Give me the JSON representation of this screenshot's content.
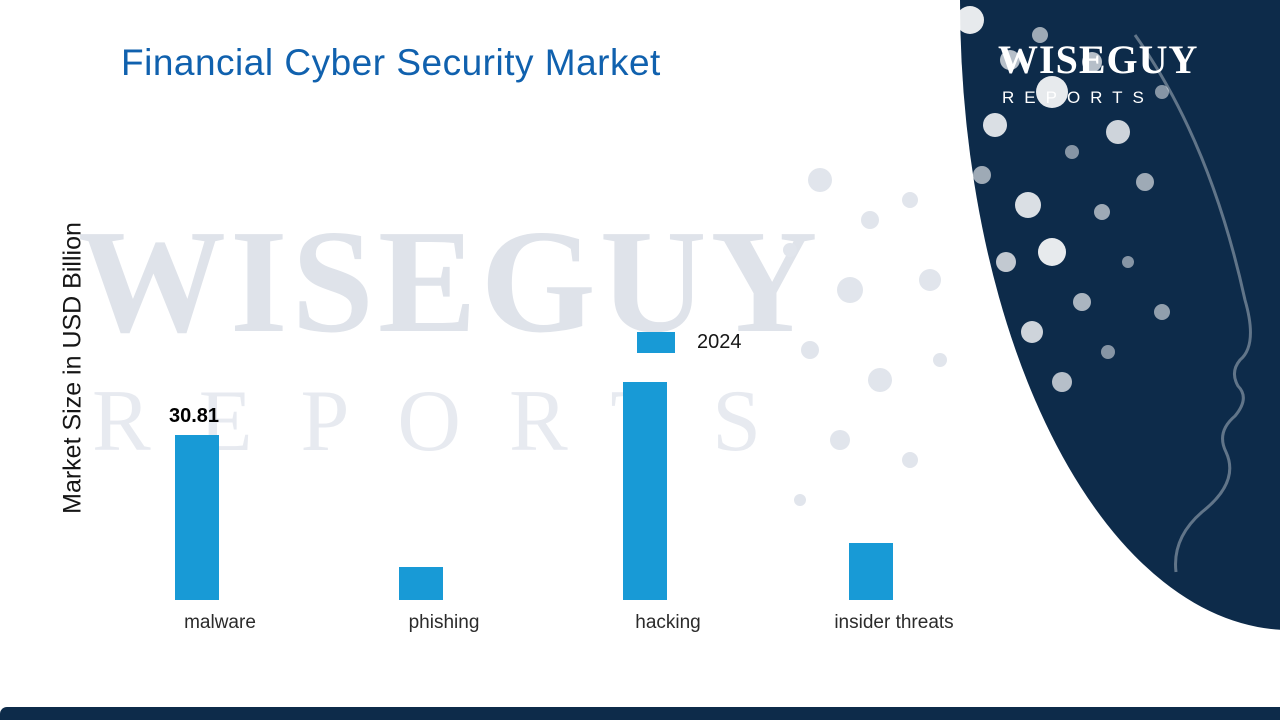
{
  "title": "Financial Cyber Security Market",
  "ylabel": "Market Size in USD Billion",
  "legend": {
    "label": "2024"
  },
  "brand": {
    "line1": "WISEGUY",
    "line2": "REPORTS"
  },
  "watermark": {
    "line1": "WISEGUY",
    "line2": "REPORTS"
  },
  "colors": {
    "bar": "#189ad6",
    "title": "#1061ae",
    "navy": "#0d2b4a"
  },
  "chart_data": {
    "type": "bar",
    "title": "Financial Cyber Security Market",
    "ylabel": "Market Size in USD Billion",
    "xlabel": "",
    "categories": [
      "malware",
      "phishing",
      "hacking",
      "insider threats"
    ],
    "values": [
      30.81,
      6.1,
      40.7,
      10.6
    ],
    "value_labels": [
      "30.81",
      "",
      "",
      ""
    ],
    "legend": [
      "2024"
    ],
    "legend_position": "above hacking bar",
    "bar_color": "#189ad6",
    "ylim": [
      0,
      45
    ],
    "grid": false,
    "note": "Only the first bar (malware) carries a printed data label; other values estimated from bar heights."
  }
}
